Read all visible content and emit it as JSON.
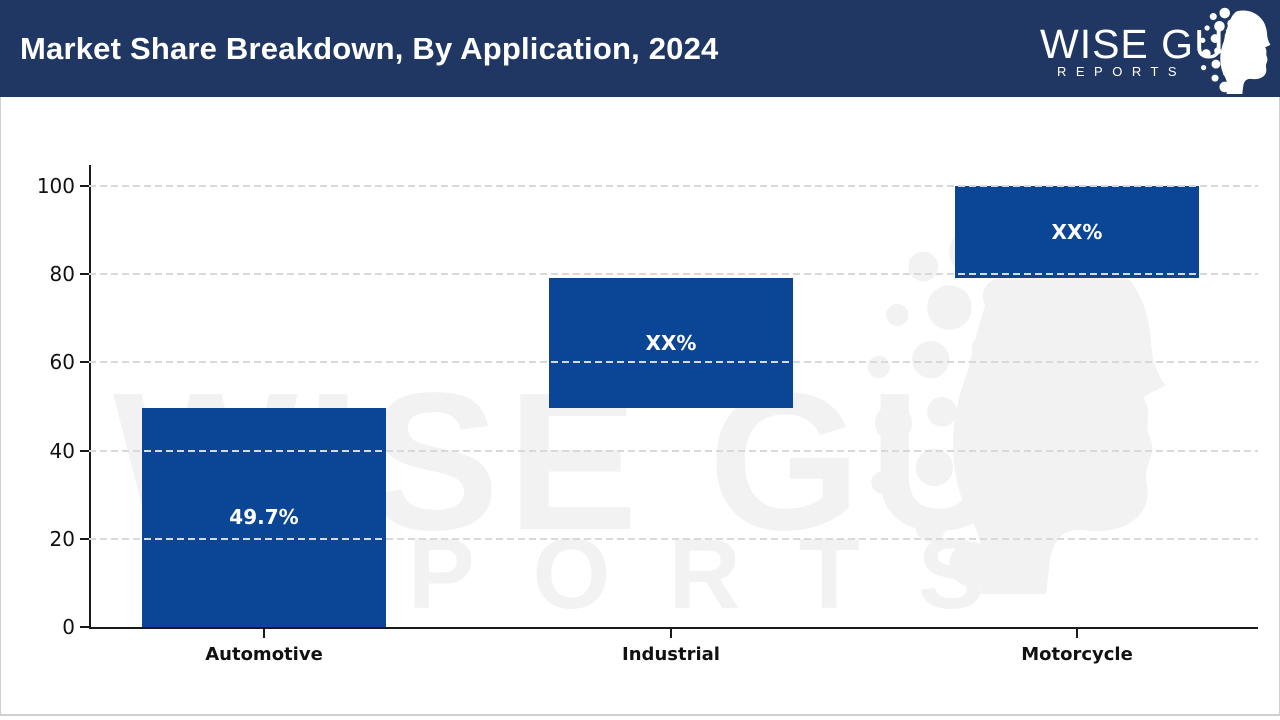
{
  "header": {
    "title": "Market Share Breakdown, By Application, 2024",
    "logo": {
      "brand_top": "WISE GUY",
      "brand_bottom": "REPORTS"
    },
    "bg_color": "#203763"
  },
  "watermark": {
    "brand_top": "WISE GUY",
    "brand_bottom": "REPORTS",
    "color": "#f2f2f2"
  },
  "chart_data": {
    "type": "bar",
    "subtype": "waterfall-floating-bars",
    "title": "Market Share Breakdown, By Application, 2024",
    "categories": [
      "Automotive",
      "Industrial",
      "Motorcycle"
    ],
    "bars": [
      {
        "category": "Automotive",
        "start": 0,
        "end": 49.7,
        "label": "49.7%"
      },
      {
        "category": "Industrial",
        "start": 49.7,
        "end": 79.2,
        "label": "XX%"
      },
      {
        "category": "Motorcycle",
        "start": 79.2,
        "end": 100,
        "label": "XX%"
      }
    ],
    "yticks": [
      "0",
      "20",
      "40",
      "60",
      "80",
      "100"
    ],
    "ylim": [
      0,
      105
    ],
    "xlabel": "",
    "ylabel": "",
    "grid": "horizontal-dashed",
    "legend": "none",
    "bar_color": "#0B4596",
    "grid_color": "#d9d9d9",
    "axis_color": "#1a1a1a",
    "bar_label_color": "#ffffff"
  }
}
